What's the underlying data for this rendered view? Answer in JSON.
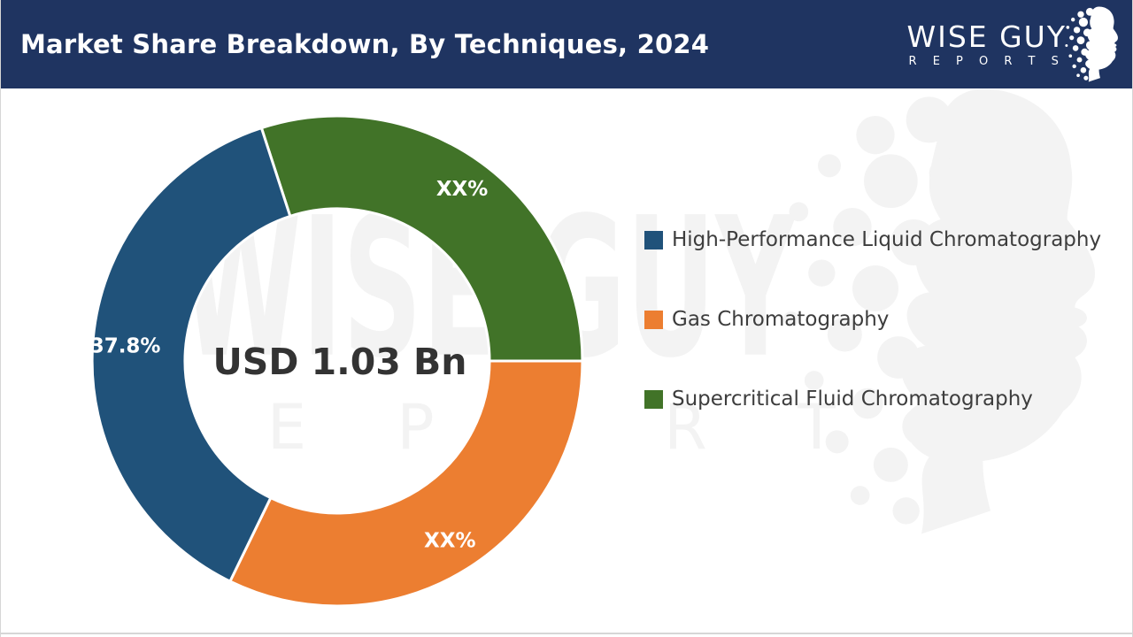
{
  "header": {
    "title": "Market Share Breakdown, By Techniques, 2024",
    "logo": {
      "name": "WISE GUY",
      "subtitle": "R E P O R T S"
    }
  },
  "watermark": {
    "line1": "WISE GUY",
    "line2": "R E P O R T S"
  },
  "chart_data": {
    "type": "pie",
    "donut": true,
    "title": "Market Share Breakdown, By Techniques, 2024",
    "center_label": "USD 1.03 Bn",
    "start_angle_deg": 342,
    "direction": "clockwise",
    "legend_position": "right",
    "background": "#ffffff",
    "segments": [
      {
        "name": "Supercritical Fluid Chromatography",
        "label": "XX%",
        "value_pct": 30.0,
        "color": "#417328"
      },
      {
        "name": "Gas Chromatography",
        "label": "XX%",
        "value_pct": 32.2,
        "color": "#ec7e31"
      },
      {
        "name": "High-Performance Liquid Chromatography",
        "label": "37.8%",
        "value_pct": 37.8,
        "color": "#20527a"
      }
    ]
  },
  "legend": {
    "items": [
      {
        "label": "High-Performance Liquid Chromatography",
        "color": "#20527a"
      },
      {
        "label": "Gas Chromatography",
        "color": "#ec7e31"
      },
      {
        "label": "Supercritical Fluid Chromatography",
        "color": "#417328"
      }
    ]
  },
  "colors": {
    "header_bg": "#1f3461",
    "center_text": "#333333",
    "legend_text": "#3d3d3d",
    "slice_label": "#ffffff",
    "watermark": "#f3f3f3"
  }
}
